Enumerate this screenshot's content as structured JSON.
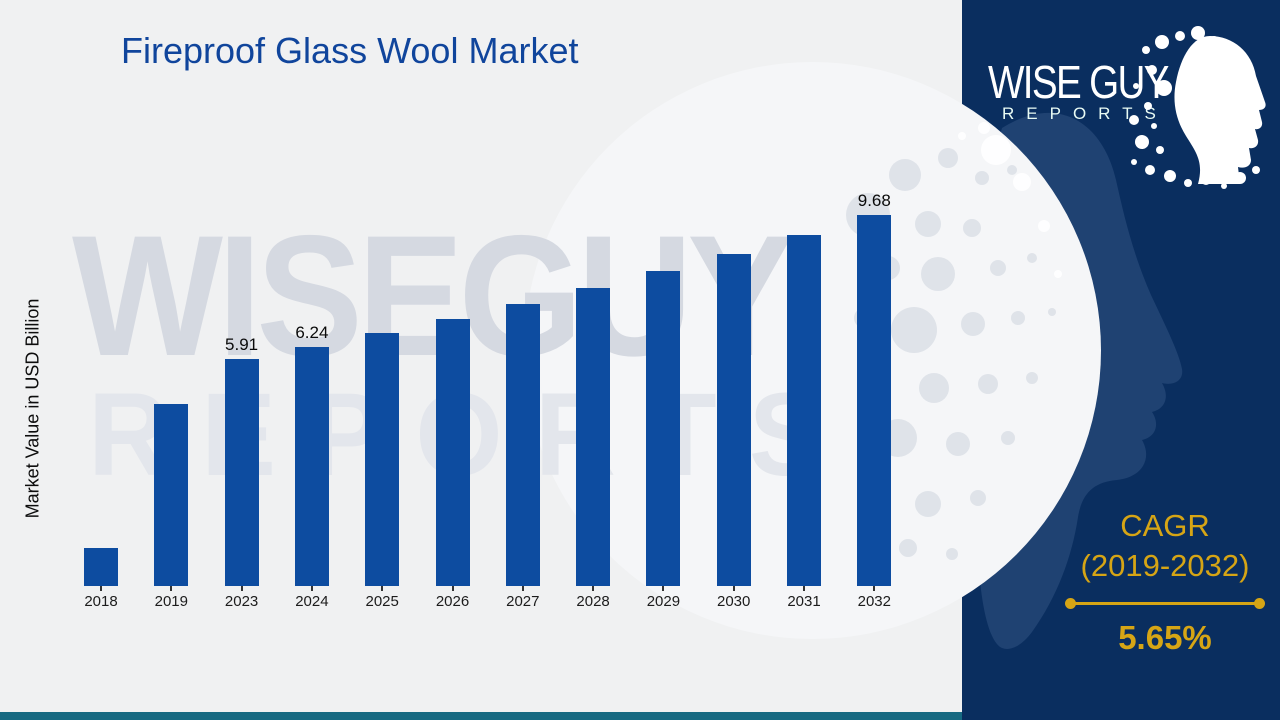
{
  "title": "Fireproof Glass Wool Market",
  "y_axis_label": "Market Value in USD Billion",
  "watermark": {
    "line1": "WISEGUY",
    "line2": "REPORTS"
  },
  "logo": {
    "brand": "WISE GUY",
    "sub": "REPORTS"
  },
  "cagr": {
    "heading": "CAGR",
    "range": "(2019-2032)",
    "value": "5.65%"
  },
  "colors": {
    "bar": "#0d4ca0",
    "panel_navy": "#0a2e5f",
    "accent_gold": "#d6a515",
    "strip_teal": "#176a82",
    "title_blue": "#10459c",
    "background": "#f0f1f2"
  },
  "chart_data": {
    "type": "bar",
    "title": "Fireproof Glass Wool Market",
    "xlabel": "",
    "ylabel": "Market Value in USD Billion",
    "categories": [
      "2018",
      "2019",
      "2023",
      "2024",
      "2025",
      "2026",
      "2027",
      "2028",
      "2029",
      "2030",
      "2031",
      "2032"
    ],
    "values": [
      1.0,
      4.74,
      5.91,
      6.24,
      6.59,
      6.96,
      7.36,
      7.77,
      8.21,
      8.67,
      9.16,
      9.68
    ],
    "bar_labels": [
      "",
      "",
      "5.91",
      "6.24",
      "",
      "",
      "",
      "",
      "",
      "",
      "",
      "9.68"
    ],
    "ylim": [
      0,
      10.5
    ],
    "grid": false,
    "legend": null,
    "annotation_cagr": "5.65% (2019-2032)"
  }
}
